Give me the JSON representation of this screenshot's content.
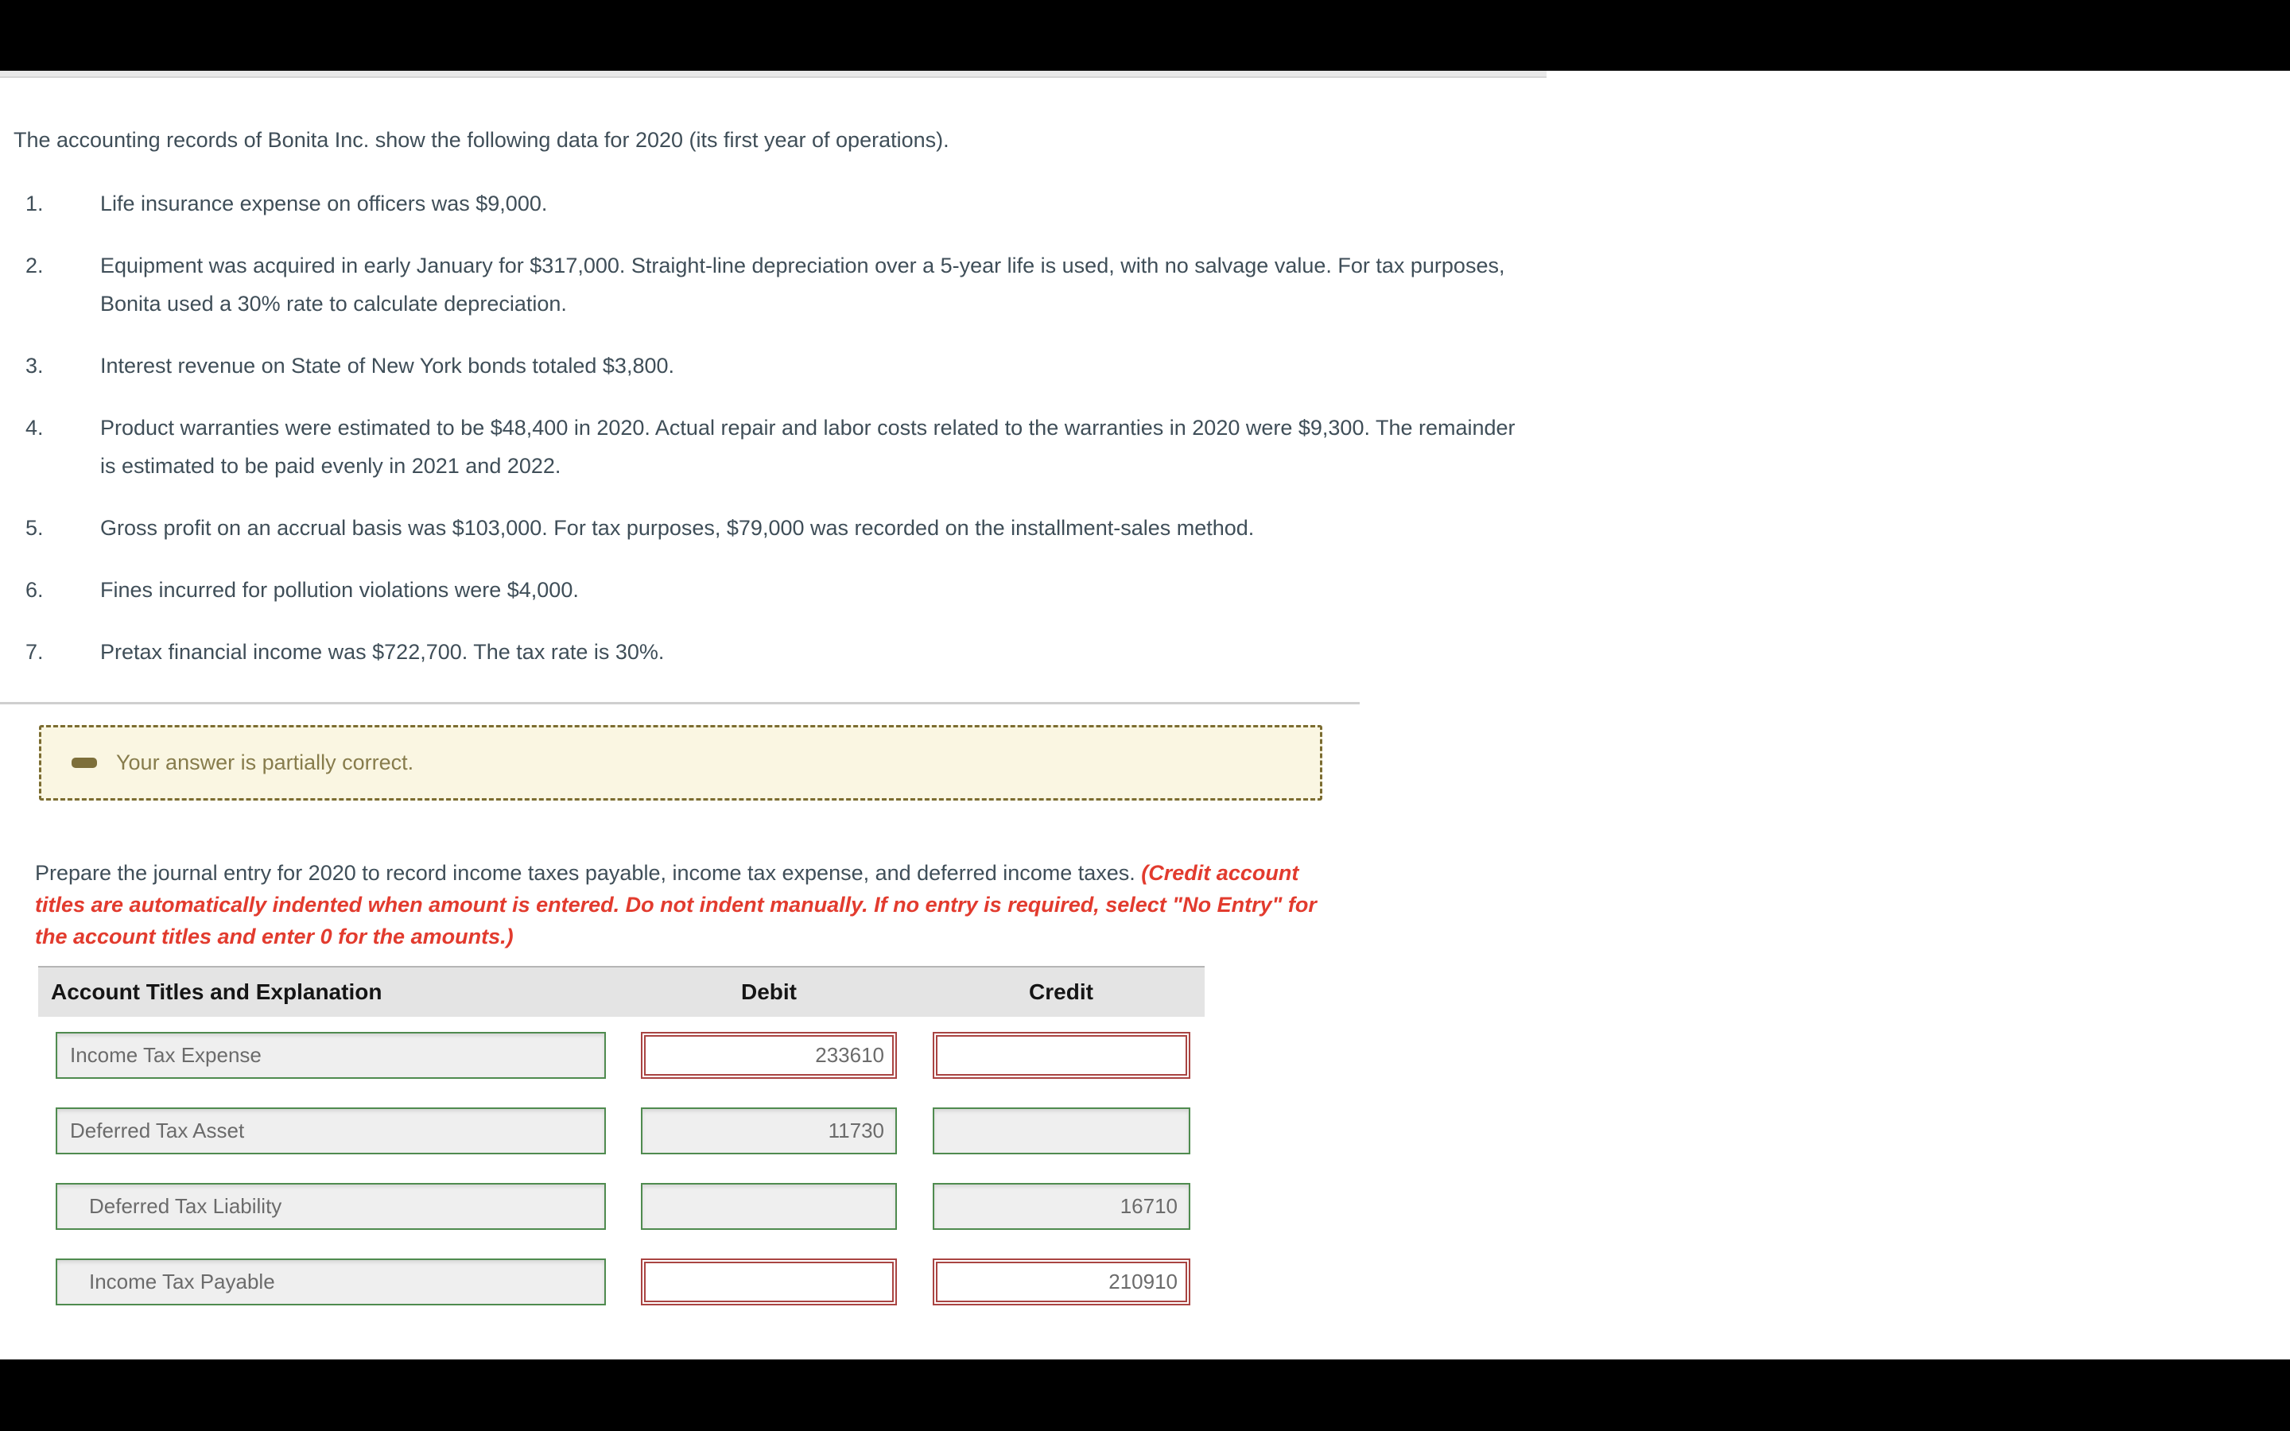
{
  "intro": "The accounting records of Bonita Inc. show the following data for 2020 (its first year of operations).",
  "facts": [
    {
      "num": "1.",
      "text": "Life insurance expense on officers was $9,000."
    },
    {
      "num": "2.",
      "text": "Equipment was acquired in early January for $317,000. Straight-line depreciation over a 5-year life is used, with no salvage value. For tax purposes, Bonita used a 30% rate to calculate depreciation."
    },
    {
      "num": "3.",
      "text": "Interest revenue on State of New York bonds totaled $3,800."
    },
    {
      "num": "4.",
      "text": "Product warranties were estimated to be $48,400 in 2020. Actual repair and labor costs related to the warranties in 2020 were $9,300. The remainder is estimated to be paid evenly in 2021 and 2022."
    },
    {
      "num": "5.",
      "text": "Gross profit on an accrual basis was $103,000. For tax purposes, $79,000 was recorded on the installment-sales method."
    },
    {
      "num": "6.",
      "text": "Fines incurred for pollution violations were $4,000."
    },
    {
      "num": "7.",
      "text": "Pretax financial income was $722,700. The tax rate is 30%."
    }
  ],
  "alert": {
    "icon": "minus",
    "text": "Your answer is partially correct."
  },
  "instruction": {
    "normal": "Prepare the journal entry for 2020 to record income taxes payable, income tax expense, and deferred income taxes. ",
    "emphasis": "(Credit account titles are automatically indented when amount is entered. Do not indent manually. If no entry is required, select \"No Entry\" for the account titles and enter 0 for the amounts.)"
  },
  "journal": {
    "headers": {
      "account": "Account Titles and Explanation",
      "debit": "Debit",
      "credit": "Credit"
    },
    "rows": [
      {
        "account": "Income Tax Expense",
        "indent_class": "",
        "debit": "233610",
        "credit": "",
        "account_state": "correct",
        "debit_state": "incorrect",
        "credit_state": "incorrect"
      },
      {
        "account": "Deferred Tax Asset",
        "indent_class": "",
        "debit": "11730",
        "credit": "",
        "account_state": "correct",
        "debit_state": "correct",
        "credit_state": "correct"
      },
      {
        "account": "Deferred Tax Liability",
        "indent_class": "indented",
        "debit": "",
        "credit": "16710",
        "account_state": "correct",
        "debit_state": "correct",
        "credit_state": "correct"
      },
      {
        "account": "Income Tax Payable",
        "indent_class": "indented",
        "debit": "",
        "credit": "210910",
        "account_state": "correct",
        "debit_state": "incorrect",
        "credit_state": "incorrect"
      }
    ]
  },
  "colors": {
    "body_text": "#3f4e58",
    "emphasis_red": "#e23b2e",
    "alert_background": "#faf6e2",
    "alert_border": "#7b6c31",
    "alert_text": "#877c4c",
    "correct_green": "#4f8b4f",
    "incorrect_red": "#a94442",
    "field_fill_gray": "#efefef",
    "header_band_gray": "#e4e4e4"
  }
}
